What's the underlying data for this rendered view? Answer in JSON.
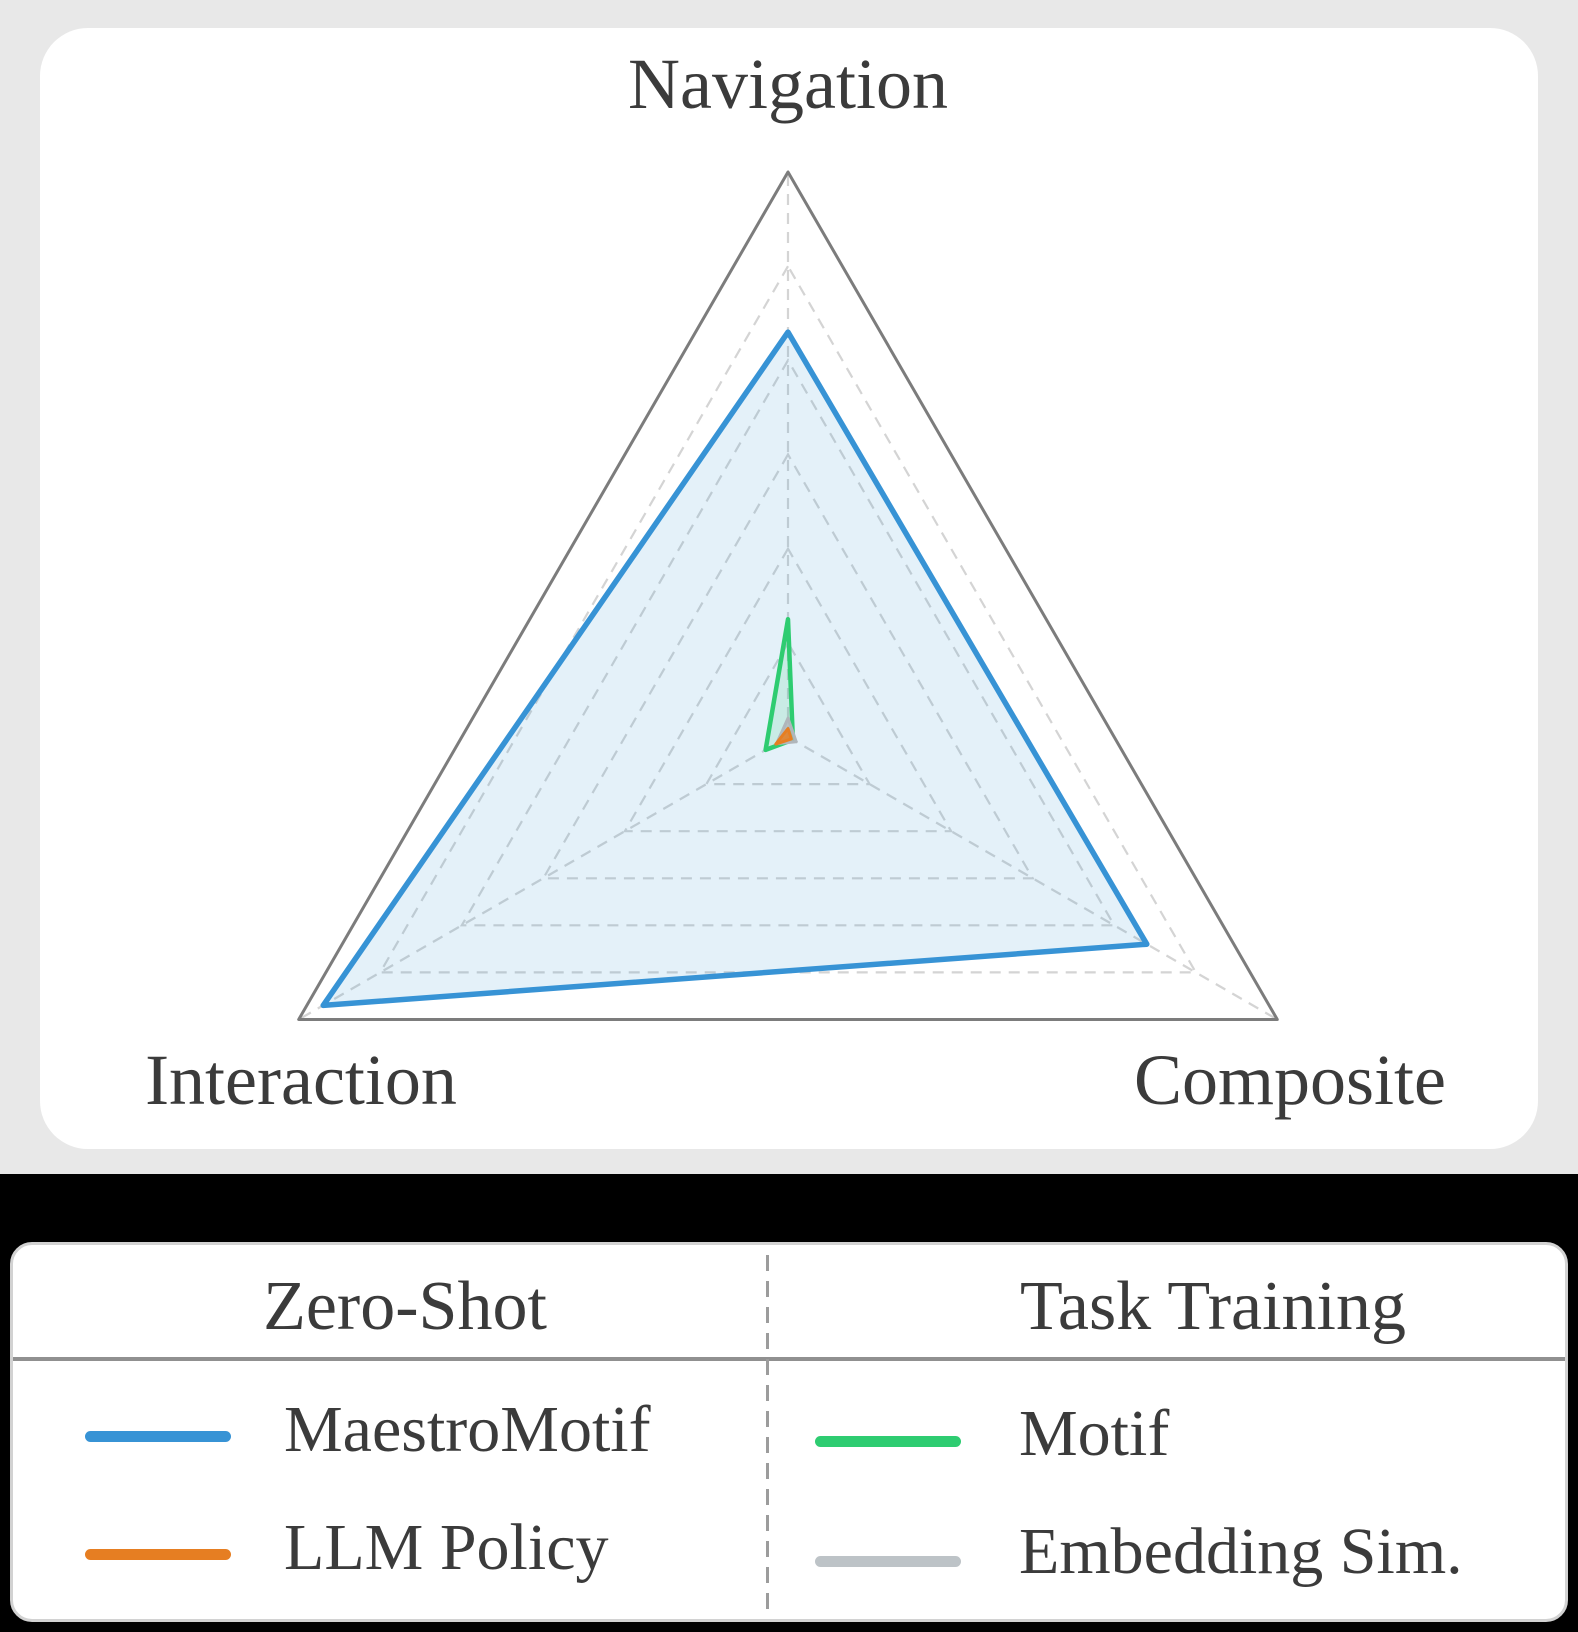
{
  "chart_data": {
    "type": "radar",
    "title": "",
    "categories": [
      "Navigation",
      "Interaction",
      "Composite"
    ],
    "axis_max": 1.2,
    "grid_step": 0.2,
    "grid_levels": [
      0.2,
      0.4,
      0.6,
      0.8,
      1.0
    ],
    "grid": true,
    "grid_color": "#d4d4d4",
    "outline_color": "#7c7c7c",
    "legend_position": "bottom",
    "series": [
      {
        "name": "MaestroMotif",
        "group": "Zero-Shot",
        "color": "#3793d5",
        "fill_opacity": 0.135,
        "stroke_width": 5.5,
        "values": [
          0.86,
          1.14,
          0.88
        ]
      },
      {
        "name": "Motif",
        "group": "Task Training",
        "color": "#2ecc71",
        "fill_opacity": 0.15,
        "stroke_width": 4.5,
        "values": [
          0.25,
          0.055,
          0.012
        ]
      },
      {
        "name": "Embedding Sim.",
        "group": "Task Training",
        "color": "#b0b6bb",
        "fill_opacity": 0.8,
        "stroke_width": 3,
        "values": [
          0.04,
          0.028,
          0.02
        ]
      },
      {
        "name": "LLM Policy",
        "group": "Zero-Shot",
        "color": "#e67e22",
        "fill_opacity": 0.85,
        "stroke_width": 3,
        "values": [
          0.018,
          0.03,
          0.008
        ]
      }
    ]
  },
  "axis_labels": {
    "navigation": "Navigation",
    "interaction": "Interaction",
    "composite": "Composite"
  },
  "legend": {
    "groups": [
      {
        "header": "Zero-Shot",
        "items": [
          {
            "label": "MaestroMotif",
            "color": "#3793d5"
          },
          {
            "label": "LLM Policy",
            "color": "#e67e22"
          }
        ]
      },
      {
        "header": "Task Training",
        "items": [
          {
            "label": "Motif",
            "color": "#2ecc71"
          },
          {
            "label": "Embedding Sim.",
            "color": "#bdc3c7"
          }
        ]
      }
    ]
  },
  "colors": {
    "page_background": "#000000",
    "chart_area_background": "#e8e8e8",
    "card_background": "#ffffff",
    "text": "#3b3b3b"
  }
}
